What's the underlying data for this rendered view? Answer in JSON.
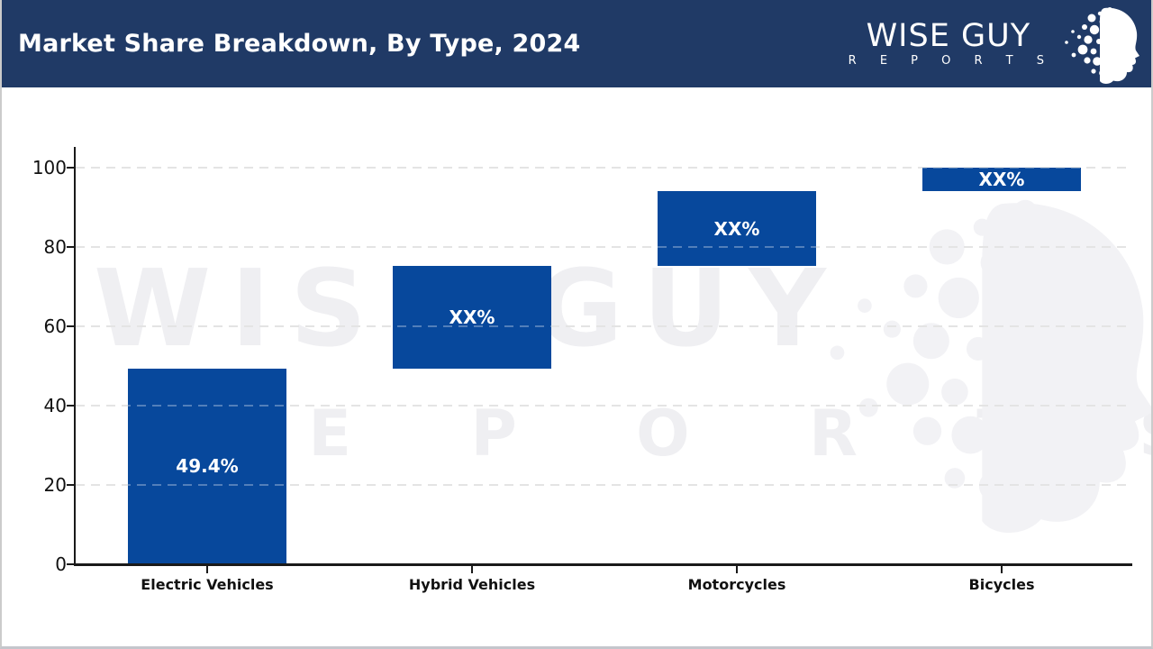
{
  "header": {
    "title": "Market Share Breakdown, By Type, 2024",
    "bg_color": "#203a66",
    "logo": {
      "line1": "WISE GUY",
      "line2": "R E P O R T S"
    }
  },
  "watermark": {
    "line1": "WISE GUY",
    "line2": "R E P O R T S"
  },
  "chart_data": {
    "type": "bar",
    "subtype": "waterfall",
    "title": "Market Share Breakdown, By Type, 2024",
    "categories": [
      "Electric Vehicles",
      "Hybrid Vehicles",
      "Motorcycles",
      "Bicycles"
    ],
    "segments": [
      {
        "category": "Electric Vehicles",
        "start": 0,
        "end": 49.4,
        "label": "49.4%"
      },
      {
        "category": "Hybrid Vehicles",
        "start": 49.4,
        "end": 75.2,
        "label": "XX%"
      },
      {
        "category": "Motorcycles",
        "start": 75.2,
        "end": 94.0,
        "label": "XX%"
      },
      {
        "category": "Bicycles",
        "start": 94.0,
        "end": 100.0,
        "label": "XX%"
      }
    ],
    "bar_labels": [
      "49.4%",
      "XX%",
      "XX%",
      "XX%"
    ],
    "xlabel": "",
    "ylabel": "",
    "yticks": [
      0,
      20,
      40,
      60,
      80,
      100
    ],
    "ylim": [
      0,
      105
    ],
    "grid": {
      "axis": "y",
      "style": "dashed",
      "color": "#d8d8d8"
    },
    "legend": "none",
    "bar_color": "#07489c",
    "bar_label_color": "#ffffff",
    "axis_color": "#1a1a1a"
  }
}
